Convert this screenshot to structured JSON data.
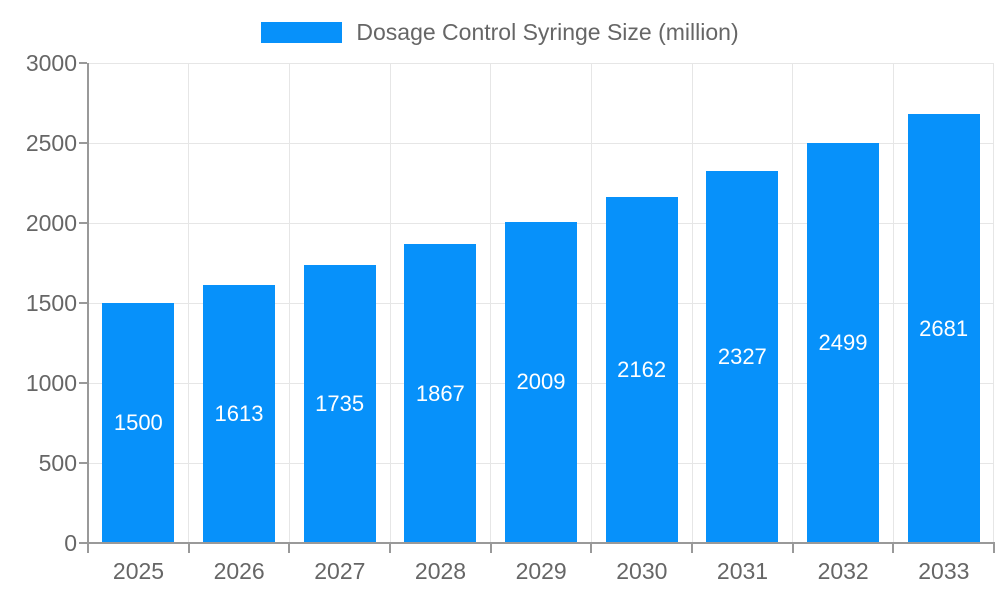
{
  "chart_data": {
    "type": "bar",
    "title": "Dosage Control Syringe Size (million)",
    "legend": [
      "Dosage Control Syringe Size (million)"
    ],
    "legend_position": "top",
    "categories": [
      "2025",
      "2026",
      "2027",
      "2028",
      "2029",
      "2030",
      "2031",
      "2032",
      "2033"
    ],
    "values": [
      1500,
      1613,
      1735,
      1867,
      2009,
      2162,
      2327,
      2499,
      2681
    ],
    "bar_labels": [
      "1500",
      "1613",
      "1735",
      "1867",
      "2009",
      "2162",
      "2327",
      "2499",
      "2681"
    ],
    "xlabel": "",
    "ylabel": "",
    "ylim": [
      0,
      3000
    ],
    "yticks": [
      0,
      500,
      1000,
      1500,
      2000,
      2500,
      3000
    ],
    "grid": "on"
  },
  "colors": {
    "bar": "#0791fa",
    "bar_label": "#ffffff",
    "text": "#666666",
    "grid": "#e6e6e6",
    "axis": "#999999",
    "background": "#ffffff"
  }
}
